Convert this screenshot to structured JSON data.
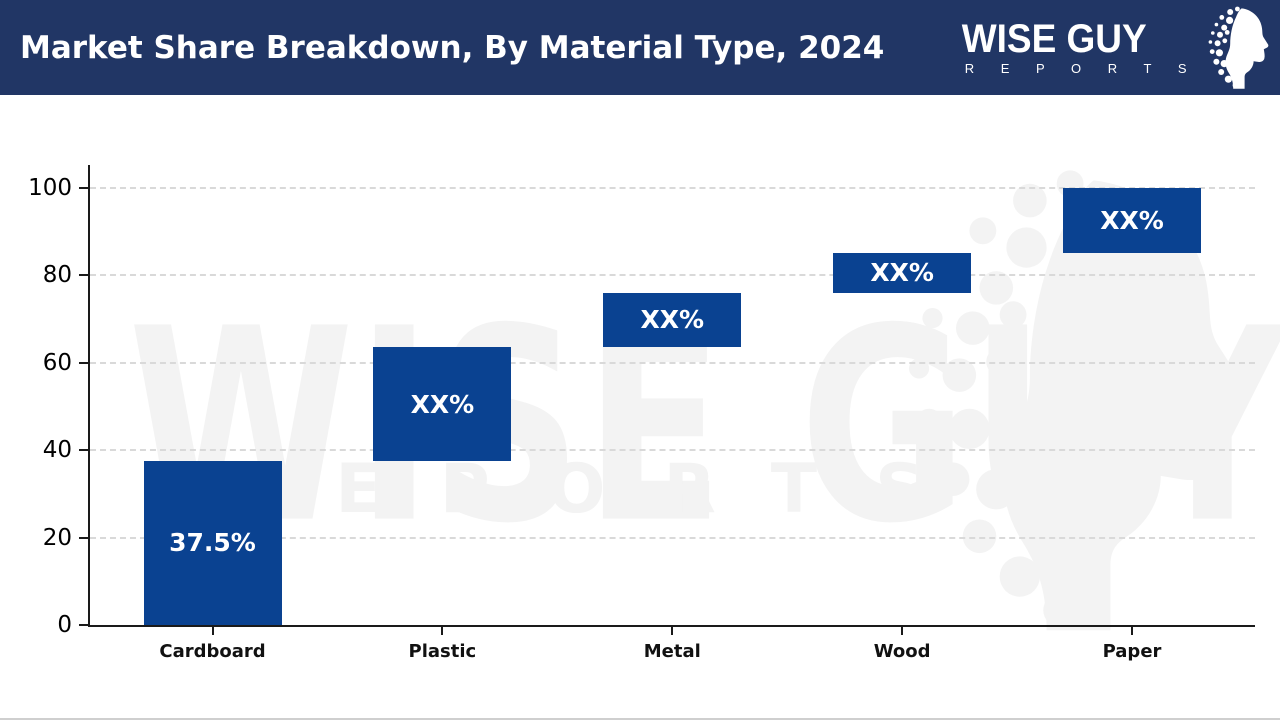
{
  "header": {
    "title": "Market Share Breakdown, By Material Type, 2024",
    "bg_color": "#213665",
    "logo": {
      "line1": "WISE GUY",
      "line2": "R E P O R T S"
    }
  },
  "watermark": {
    "line1": "WISE GUY",
    "line2": "REPORTS"
  },
  "chart_data": {
    "type": "bar",
    "subtype": "floating-waterfall",
    "title": "Market Share Breakdown, By Material Type, 2024",
    "categories": [
      "Cardboard",
      "Plastic",
      "Metal",
      "Wood",
      "Paper"
    ],
    "segments": [
      {
        "category": "Cardboard",
        "start": 0,
        "end": 37.5,
        "label": "37.5%"
      },
      {
        "category": "Plastic",
        "start": 37.5,
        "end": 63.5,
        "label": "XX%"
      },
      {
        "category": "Metal",
        "start": 63.5,
        "end": 76,
        "label": "XX%"
      },
      {
        "category": "Wood",
        "start": 76,
        "end": 85,
        "label": "XX%"
      },
      {
        "category": "Paper",
        "start": 85,
        "end": 100,
        "label": "XX%"
      }
    ],
    "ylim": [
      0,
      100
    ],
    "yticks": [
      0,
      20,
      40,
      60,
      80,
      100
    ],
    "grid": "horizontal-dashed",
    "legend": "none",
    "bar_color": "#0a4291",
    "bar_label_color": "#ffffff",
    "axis_color": "#1a1a1a",
    "gridline_color": "#d9d9d9"
  }
}
